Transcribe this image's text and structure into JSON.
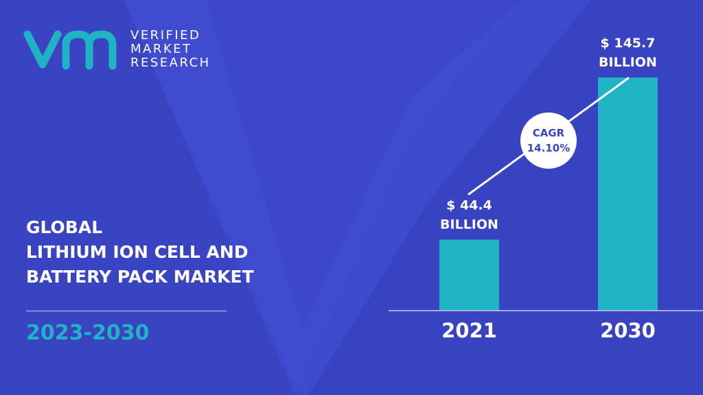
{
  "brand": {
    "line1": "VERIFIED",
    "line2": "MARKET",
    "line3": "RESEARCH",
    "monogram": "vmr",
    "color": "#1fb3c4"
  },
  "title": {
    "line1": "GLOBAL",
    "line2": "LITHIUM ION CELL AND",
    "line3": "BATTERY PACK MARKET"
  },
  "period": "2023-2030",
  "cagr": {
    "label": "CAGR",
    "value": "14.10%"
  },
  "colors": {
    "background": "#3c48c9",
    "bar": "#1fb3c4",
    "accent": "#1fb3c4"
  },
  "chart_data": {
    "type": "bar",
    "categories": [
      "2021",
      "2030"
    ],
    "values": [
      44.4,
      145.7
    ],
    "data_labels": [
      [
        "$ 44.4",
        "BILLION"
      ],
      [
        "$ 145.7",
        "BILLION"
      ]
    ],
    "unit": "BILLION",
    "ylim": [
      0,
      145.7
    ],
    "grid": false,
    "legend": "none"
  }
}
